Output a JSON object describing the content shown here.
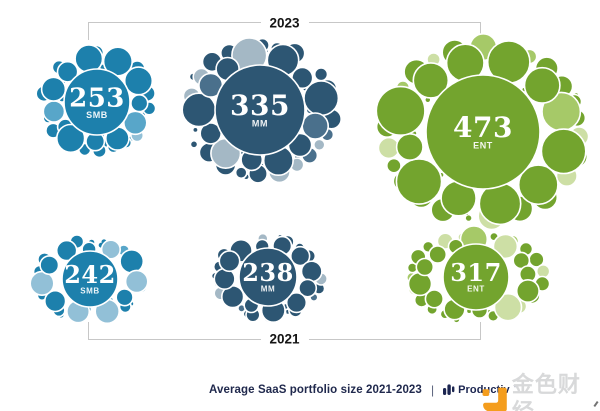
{
  "brackets": {
    "top_label": "2023",
    "bottom_label": "2021",
    "line_color": "#c7c7c7"
  },
  "chart_data": {
    "type": "bubble",
    "title": "Average SaaS portfolio size 2021-2023",
    "categories": [
      "SMB",
      "MM",
      "ENT"
    ],
    "series": [
      {
        "name": "2023",
        "values": [
          253,
          335,
          473
        ]
      },
      {
        "name": "2021",
        "values": [
          242,
          238,
          317
        ]
      }
    ],
    "legend_position": "none",
    "annotations": [
      "2023 row on top, 2021 row on bottom; packed bubble clusters sized by value"
    ],
    "clusters": [
      {
        "id": "smb-2023",
        "year": "2023",
        "segment": "SMB",
        "value": "253",
        "color_main": "#1d80ac",
        "color_light": "#92c0d7",
        "color_mid": "#58a6c9"
      },
      {
        "id": "mm-2023",
        "year": "2023",
        "segment": "MM",
        "value": "335",
        "color_main": "#2d5673",
        "color_light": "#a4b8c5",
        "color_mid": "#4a708c"
      },
      {
        "id": "ent-2023",
        "year": "2023",
        "segment": "ENT",
        "value": "473",
        "color_main": "#73a42e",
        "color_light": "#cddfa5",
        "color_mid": "#a6c968"
      },
      {
        "id": "smb-2021",
        "year": "2021",
        "segment": "SMB",
        "value": "242",
        "color_main": "#1d80ac",
        "color_light": "#92c0d7",
        "color_mid": "#58a6c9"
      },
      {
        "id": "mm-2021",
        "year": "2021",
        "segment": "MM",
        "value": "238",
        "color_main": "#2d5673",
        "color_light": "#a4b8c5",
        "color_mid": "#4a708c"
      },
      {
        "id": "ent-2021",
        "year": "2021",
        "segment": "ENT",
        "value": "317",
        "color_main": "#73a42e",
        "color_light": "#cddfa5",
        "color_mid": "#a6c968"
      }
    ]
  },
  "caption": {
    "text": "Average SaaS portfolio size 2021-2023",
    "separator": "|",
    "brand": "Productiv",
    "brand_mark": "™",
    "text_color": "#20294d"
  },
  "watermark": {
    "text": "金色财经",
    "logo_color": "#f49d1d",
    "text_color": "#d8d9da"
  }
}
